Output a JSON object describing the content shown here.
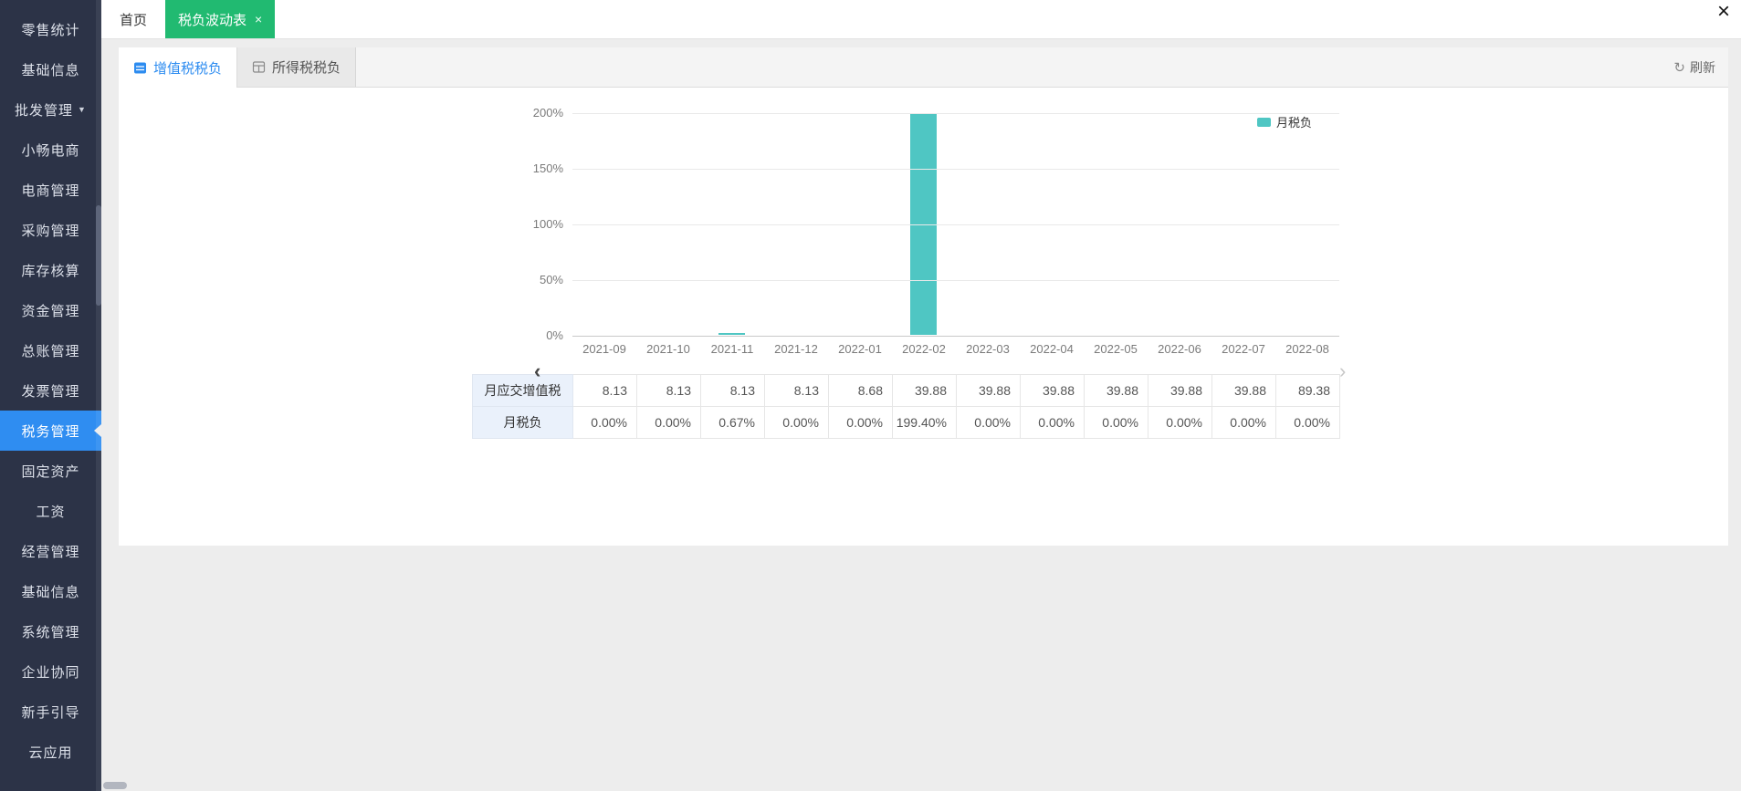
{
  "colors": {
    "accent_blue": "#2d8cf0",
    "tab_green": "#21ba71",
    "bar_teal": "#4fc6c3",
    "sidebar_bg": "#2c3347",
    "sidebar_active": "#2f8df1"
  },
  "icons": {
    "close": "×",
    "refresh": "↻",
    "caret_left": "‹",
    "caret_right": "›",
    "dropdown": "▼"
  },
  "sidebar": {
    "items": [
      {
        "label": "零售统计"
      },
      {
        "label": "基础信息"
      },
      {
        "label": "批发管理",
        "caret": true
      },
      {
        "label": "小畅电商"
      },
      {
        "label": "电商管理"
      },
      {
        "label": "采购管理"
      },
      {
        "label": "库存核算"
      },
      {
        "label": "资金管理"
      },
      {
        "label": "总账管理"
      },
      {
        "label": "发票管理"
      },
      {
        "label": "税务管理",
        "active": true
      },
      {
        "label": "固定资产"
      },
      {
        "label": "工资"
      },
      {
        "label": "经营管理"
      },
      {
        "label": "基础信息"
      },
      {
        "label": "系统管理"
      },
      {
        "label": "企业协同"
      },
      {
        "label": "新手引导"
      },
      {
        "label": "云应用"
      }
    ]
  },
  "tabbar": {
    "home_tab": "首页",
    "active_tab": "税负波动表"
  },
  "panel": {
    "tabs": [
      {
        "label": "增值税税负",
        "active": true
      },
      {
        "label": "所得税税负",
        "active": false
      }
    ],
    "refresh_label": "刷新"
  },
  "chart_data": {
    "type": "bar",
    "title": "",
    "xlabel": "",
    "ylabel": "",
    "categories": [
      "2021-09",
      "2021-10",
      "2021-11",
      "2021-12",
      "2022-01",
      "2022-02",
      "2022-03",
      "2022-04",
      "2022-05",
      "2022-06",
      "2022-07",
      "2022-08"
    ],
    "series": [
      {
        "name": "月税负",
        "values": [
          0,
          0,
          0.67,
          0,
          0,
          199.4,
          0,
          0,
          0,
          0,
          0,
          0
        ]
      }
    ],
    "y_ticks": [
      "0%",
      "50%",
      "100%",
      "150%",
      "200%"
    ],
    "ylim": [
      0,
      200
    ],
    "grid": true,
    "legend": [
      "月税负"
    ],
    "legend_position": "top-right",
    "bar_color": "#4fc6c3"
  },
  "table": {
    "rows": [
      {
        "header": "月应交增值税",
        "values": [
          "8.13",
          "8.13",
          "8.13",
          "8.13",
          "8.68",
          "39.88",
          "39.88",
          "39.88",
          "39.88",
          "39.88",
          "39.88",
          "89.38"
        ]
      },
      {
        "header": "月税负",
        "values": [
          "0.00%",
          "0.00%",
          "0.67%",
          "0.00%",
          "0.00%",
          "199.40%",
          "0.00%",
          "0.00%",
          "0.00%",
          "0.00%",
          "0.00%",
          "0.00%"
        ]
      }
    ]
  }
}
